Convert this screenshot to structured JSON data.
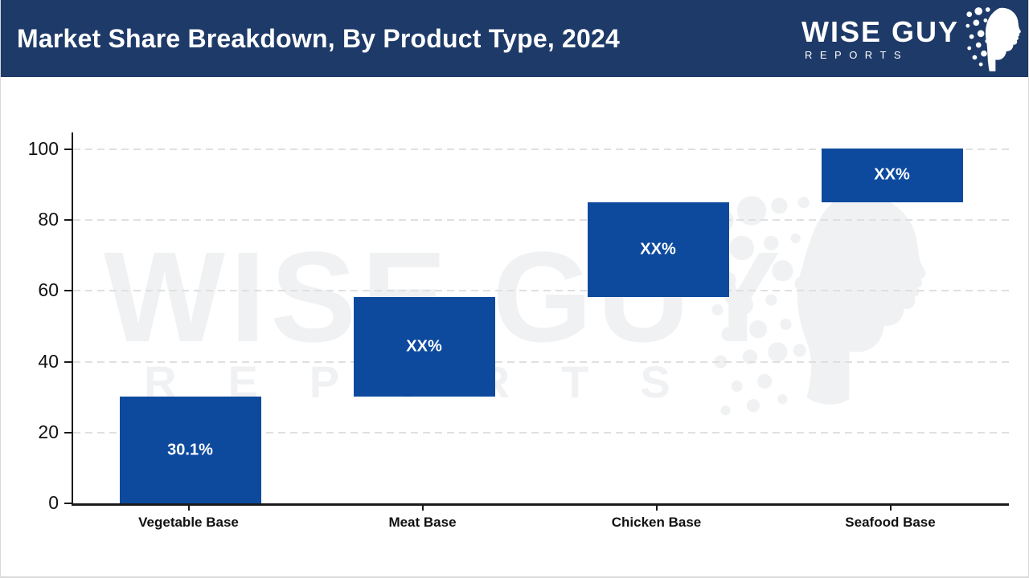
{
  "header": {
    "title": "Market Share Breakdown, By Product Type, 2024",
    "logo": {
      "line1": "WISE GUY",
      "line2": "REPORTS"
    }
  },
  "watermark": {
    "line1": "WISE GUY",
    "line2": "REPORTS"
  },
  "colors": {
    "header_bg": "#1e3a68",
    "bar": "#0d4a9e",
    "bar_label": "#ffffff",
    "grid": "#e0e0e0",
    "axis": "#1a1a1a",
    "text": "#111111",
    "watermark": "#f0f1f3",
    "border": "#d9d9d9"
  },
  "chart_data": {
    "type": "bar",
    "subtype": "waterfall-floating-bars",
    "title": "Market Share Breakdown, By Product Type, 2024",
    "xlabel": "",
    "ylabel": "",
    "categories": [
      "Vegetable Base",
      "Meat Base",
      "Chicken Base",
      "Seafood Base"
    ],
    "segments": [
      {
        "category": "Vegetable Base",
        "start": 0,
        "end": 30.1,
        "label": "30.1%"
      },
      {
        "category": "Meat Base",
        "start": 30.1,
        "end": 58.2,
        "label": "XX%"
      },
      {
        "category": "Chicken Base",
        "start": 58.2,
        "end": 85.1,
        "label": "XX%"
      },
      {
        "category": "Seafood Base",
        "start": 85.1,
        "end": 100.2,
        "label": "XX%"
      }
    ],
    "yticks": [
      0,
      20,
      40,
      60,
      80,
      100
    ],
    "ylim": [
      0,
      105
    ],
    "grid": "horizontal-dashed",
    "legend": "none"
  }
}
